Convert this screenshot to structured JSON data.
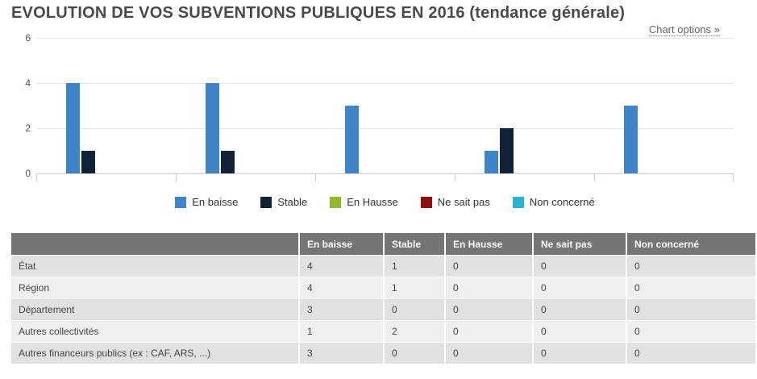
{
  "page": {
    "title": "EVOLUTION DE VOS SUBVENTIONS PUBLIQUES EN 2016 (tendance générale)",
    "chart_options_label": "Chart options »"
  },
  "chart_data": {
    "type": "bar",
    "title": "EVOLUTION DE VOS SUBVENTIONS PUBLIQUES EN 2016 (tendance générale)",
    "categories": [
      "État",
      "Région",
      "Département",
      "Autres collectivités",
      "Autres financeurs publics (ex : CAF, ARS, ...)"
    ],
    "series": [
      {
        "name": "En baisse",
        "color": "#3d85c8",
        "values": [
          4,
          4,
          3,
          1,
          3
        ]
      },
      {
        "name": "Stable",
        "color": "#112336",
        "values": [
          1,
          1,
          0,
          2,
          0
        ]
      },
      {
        "name": "En Hausse",
        "color": "#8dbb2c",
        "values": [
          0,
          0,
          0,
          0,
          0
        ]
      },
      {
        "name": "Ne sait pas",
        "color": "#8e1010",
        "values": [
          0,
          0,
          0,
          0,
          0
        ]
      },
      {
        "name": "Non concerné",
        "color": "#29b5d0",
        "values": [
          0,
          0,
          0,
          0,
          0
        ]
      }
    ],
    "xlabel": "",
    "ylabel": "",
    "ylim": [
      0,
      6
    ],
    "yticks": [
      0,
      2,
      4,
      6
    ],
    "grid": true,
    "legend_position": "bottom"
  },
  "table": {
    "header": [
      "",
      "En baisse",
      "Stable",
      "En Hausse",
      "Ne sait pas",
      "Non concerné"
    ],
    "rows": [
      {
        "label": "État",
        "values": [
          "4",
          "1",
          "0",
          "0",
          "0"
        ]
      },
      {
        "label": "Région",
        "values": [
          "4",
          "1",
          "0",
          "0",
          "0"
        ]
      },
      {
        "label": "Département",
        "values": [
          "3",
          "0",
          "0",
          "0",
          "0"
        ]
      },
      {
        "label": "Autres collectivités",
        "values": [
          "1",
          "2",
          "0",
          "0",
          "0"
        ]
      },
      {
        "label": "Autres financeurs publics (ex : CAF, ARS, ...)",
        "values": [
          "3",
          "0",
          "0",
          "0",
          "0"
        ]
      }
    ]
  }
}
